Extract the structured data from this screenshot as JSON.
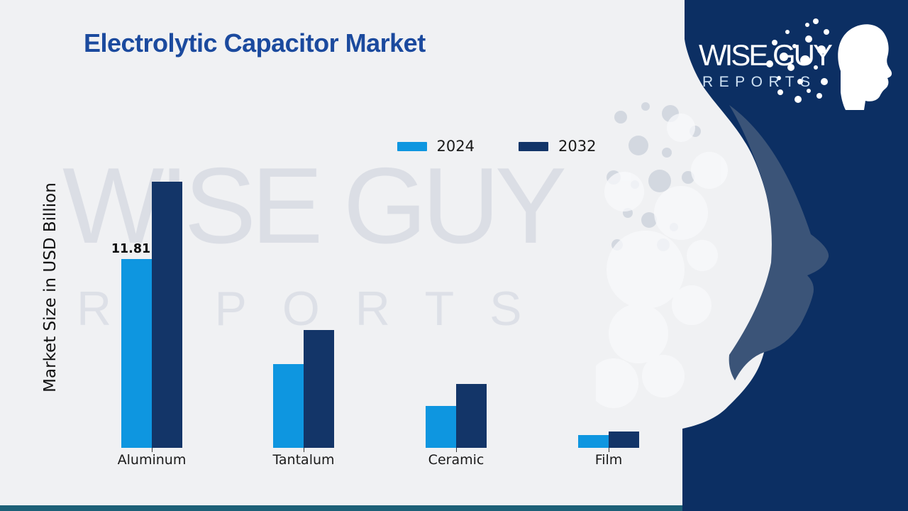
{
  "page": {
    "background": "#f0f1f3"
  },
  "chart_data": {
    "type": "bar",
    "title": "Electrolytic Capacitor Market",
    "xlabel": "",
    "ylabel": "Market Size in USD Billion",
    "categories": [
      "Aluminum",
      "Tantalum",
      "Ceramic",
      "Film"
    ],
    "series": [
      {
        "name": "2024",
        "color": "#0e96e0",
        "values": [
          11.81,
          5.24,
          2.62,
          0.8
        ]
      },
      {
        "name": "2032",
        "color": "#133568",
        "values": [
          16.65,
          7.37,
          4.0,
          1.02
        ]
      }
    ],
    "annotations": [
      {
        "category": "Aluminum",
        "series": "2024",
        "text": "11.81"
      }
    ],
    "ylim": [
      0,
      18
    ],
    "grid": false,
    "y_axis_ticks_visible": false,
    "legend_position": "top-center"
  },
  "watermark": {
    "line1": "WISE GUY",
    "line2": "REPORTS"
  },
  "brand": {
    "line1": "WISE GUY",
    "line2": "REPORTS",
    "panel_color": "#0c2f63",
    "face_silhouette_color": "#3b5478",
    "accent_bar_color": "#1d6077",
    "wordmark_color": "#ffffff",
    "reports_color": "#cfe2f4"
  },
  "style": {
    "title_color": "#1b4a9e",
    "text_color": "#1a1a1a",
    "watermark_color": "#dbdee5",
    "background": "#f0f1f3"
  }
}
